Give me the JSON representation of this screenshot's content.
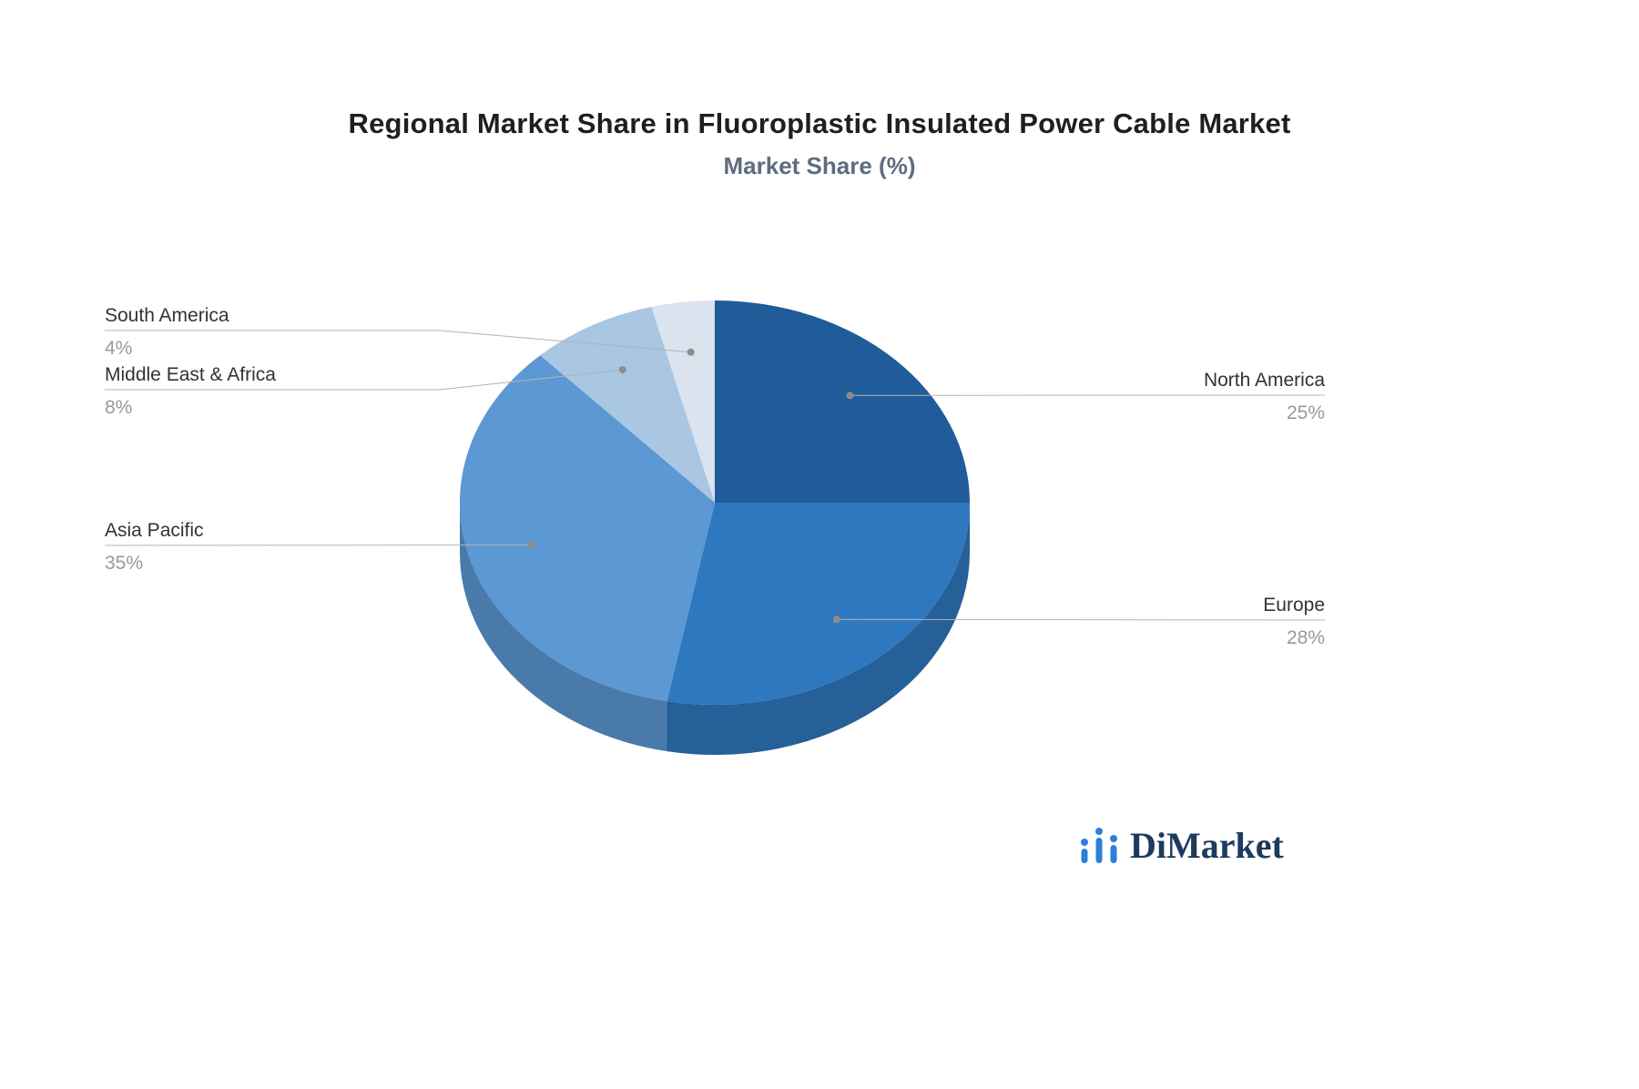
{
  "title": "Regional Market Share in Fluoroplastic Insulated Power Cable Market",
  "subtitle": "Market Share (%)",
  "logo": {
    "text": "DiMarket"
  },
  "chart_data": {
    "type": "pie",
    "style": "3d-pie",
    "title": "Regional Market Share in Fluoroplastic Insulated Power Cable Market",
    "subtitle": "Market Share (%)",
    "categories": [
      "North America",
      "Europe",
      "Asia Pacific",
      "Middle East & Africa",
      "South America"
    ],
    "values": [
      25,
      28,
      35,
      8,
      4
    ],
    "unit": "%",
    "colors": [
      "#1f5c99",
      "#2e78bf",
      "#5b98d4",
      "#a9c6e3",
      "#dbe3ee"
    ],
    "start_angle_deg": 0,
    "direction": "clockwise",
    "legend_position": "none",
    "label_line_color": "#b3b3b3",
    "label_name_color": "#333333",
    "label_value_color": "#999999"
  }
}
